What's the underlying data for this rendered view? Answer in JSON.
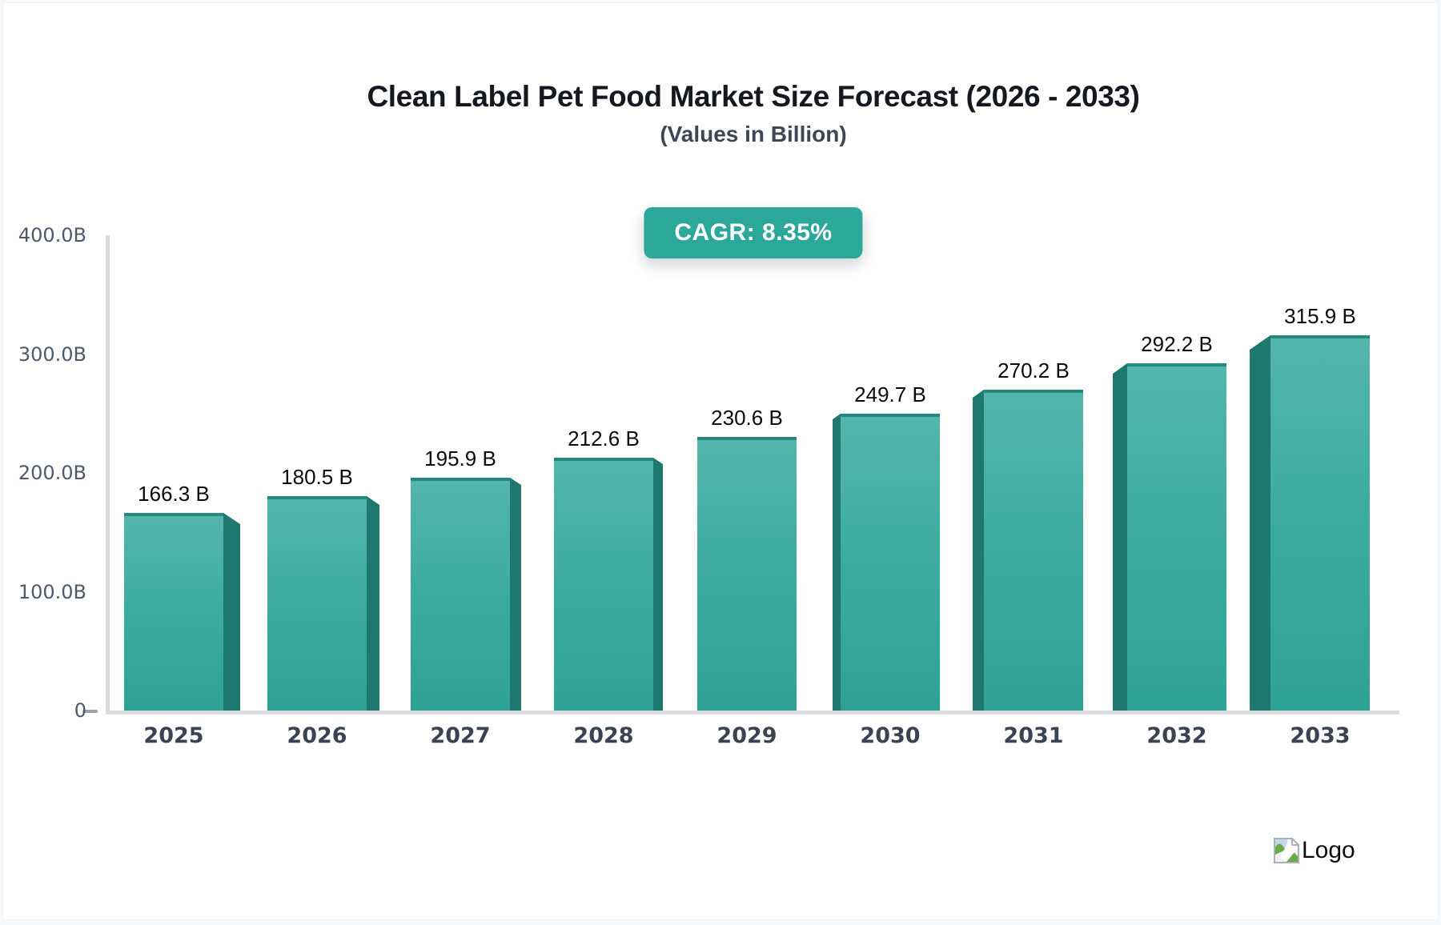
{
  "header": {
    "title": "Clean Label Pet Food Market Size Forecast (2026 - 2033)",
    "subtitle": "(Values in Billion)",
    "cagr_badge": "CAGR: 8.35%"
  },
  "footer": {
    "logo_text": "Logo",
    "logo_icon": "broken-image-icon"
  },
  "colors": {
    "accent": "#2ba89a",
    "bar_gradient_top": "#53b6ad",
    "bar_gradient_bottom": "#2ea295",
    "bar_top_edge": "#26897e",
    "bar_side": "#1f786e",
    "axis_line": "#d9dbde",
    "y_label": "#4e5a6a",
    "x_label": "#3a4351",
    "value_label": "#0a0a0a"
  },
  "chart_data": {
    "type": "bar",
    "style": "3d-column",
    "title": "Clean Label Pet Food Market Size Forecast (2026 - 2033)",
    "subtitle": "(Values in Billion)",
    "cagr": "8.35%",
    "unit": "Billion",
    "categories": [
      "2025",
      "2026",
      "2027",
      "2028",
      "2029",
      "2030",
      "2031",
      "2032",
      "2033"
    ],
    "values": [
      166.3,
      180.5,
      195.9,
      212.6,
      230.6,
      249.7,
      270.2,
      292.2,
      315.9
    ],
    "value_labels": [
      "166.3 B",
      "180.5 B",
      "195.9 B",
      "212.6 B",
      "230.6 B",
      "249.7 B",
      "270.2 B",
      "292.2 B",
      "315.9 B"
    ],
    "ylim": [
      0,
      400
    ],
    "y_ticks": [
      {
        "label": "400.0B",
        "value": 400
      },
      {
        "label": "300.0B",
        "value": 300
      },
      {
        "label": "200.0B",
        "value": 200
      },
      {
        "label": "100.0B",
        "value": 100
      },
      {
        "label": "0",
        "value": 0
      }
    ],
    "grid": false,
    "legend": false
  }
}
